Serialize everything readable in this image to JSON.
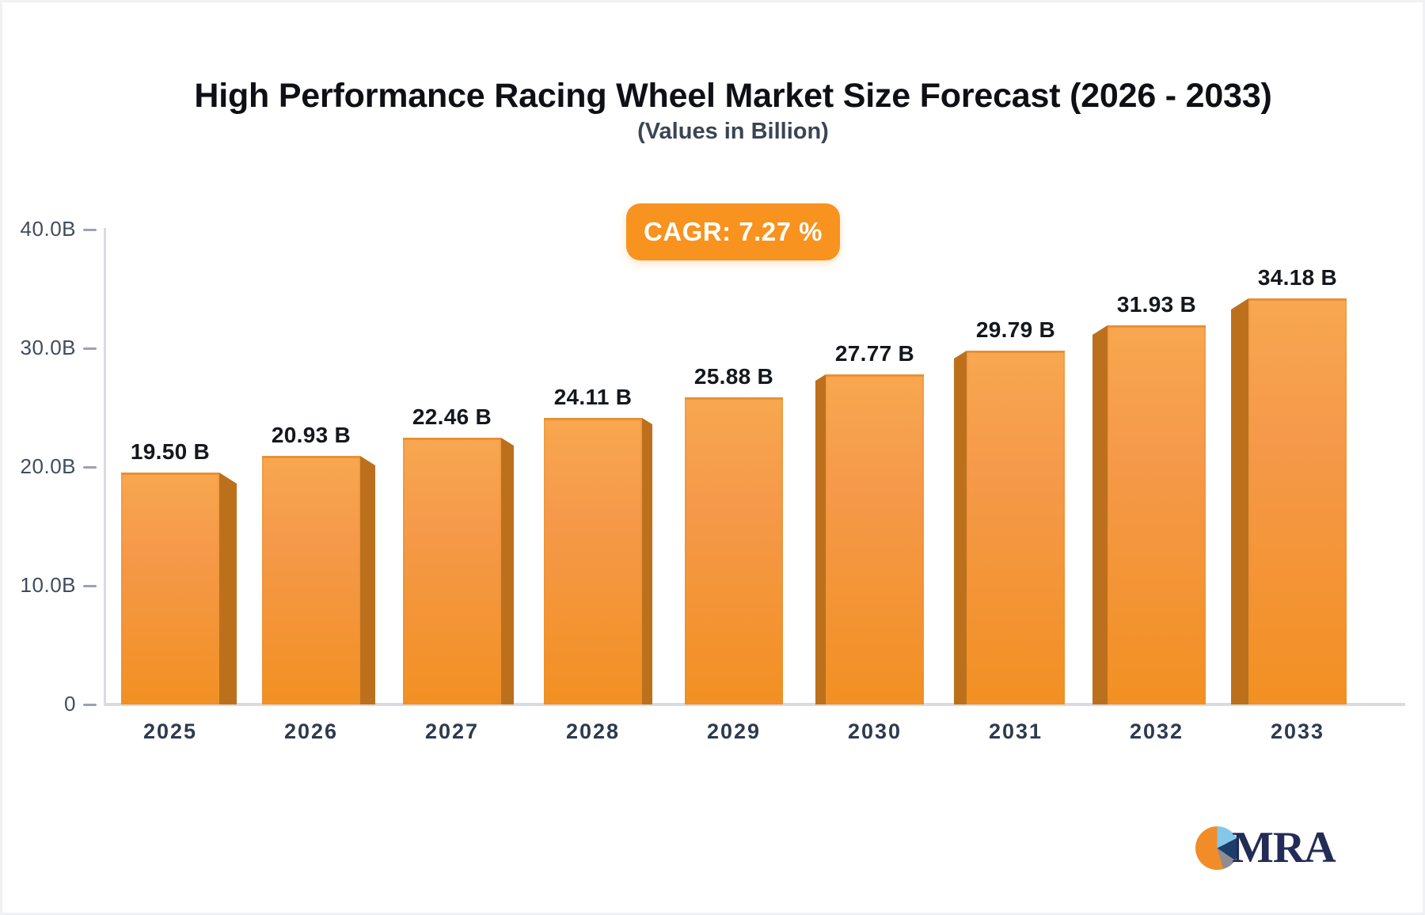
{
  "header": {
    "title": "High Performance Racing Wheel Market Size Forecast (2026 - 2033)",
    "subtitle": "(Values in Billion)"
  },
  "cagr": {
    "label": "CAGR: 7.27 %",
    "badge_color": "#f7931e"
  },
  "chart_data": {
    "type": "bar",
    "title": "High Performance Racing Wheel Market Size Forecast (2026 - 2033)",
    "subtitle": "(Values in Billion)",
    "unit": "Billion",
    "categories": [
      "2025",
      "2026",
      "2027",
      "2028",
      "2029",
      "2030",
      "2031",
      "2032",
      "2033"
    ],
    "values": [
      19.5,
      20.93,
      22.46,
      24.11,
      25.88,
      27.77,
      29.79,
      31.93,
      34.18
    ],
    "value_labels": [
      "19.50 B",
      "20.93 B",
      "22.46 B",
      "24.11 B",
      "25.88 B",
      "27.77 B",
      "29.79 B",
      "31.93 B",
      "34.18 B"
    ],
    "cagr_percent": 7.27,
    "ylim": [
      0,
      40
    ],
    "ytick_labels": [
      "40.0B",
      "30.0B",
      "20.0B",
      "10.0B",
      "0"
    ],
    "ytick_values": [
      40,
      30,
      20,
      10,
      0
    ],
    "xlabel": "",
    "ylabel": "",
    "grid": false,
    "legend": false,
    "bar_color_top": "#f8a750",
    "bar_color_bottom": "#f29022",
    "bar_side_color": "#bd701c",
    "style": "3d-perspective-center-vanishing"
  },
  "branding": {
    "logo_text": "MRA"
  }
}
